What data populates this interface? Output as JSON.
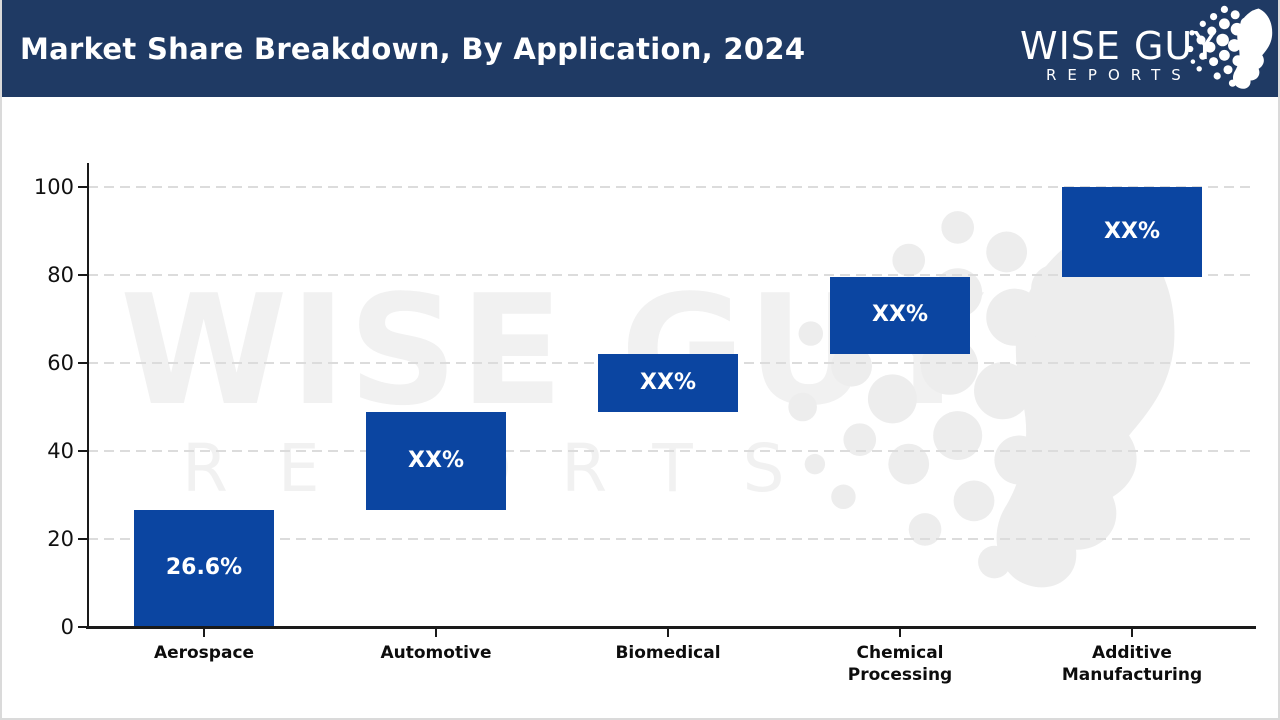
{
  "header": {
    "title": "Market Share Breakdown, By Application, 2024",
    "bg_color": "#1f3a64",
    "logo": {
      "name": "WISE GUY",
      "sub": "REPORTS"
    }
  },
  "watermark": {
    "line1": "WISE GUY",
    "line2": "REPORTS"
  },
  "chart_data": {
    "type": "bar",
    "variant": "waterfall",
    "title": "Market Share Breakdown, By Application, 2024",
    "categories": [
      "Aerospace",
      "Automotive",
      "Biomedical",
      "Chemical Processing",
      "Additive Manufacturing"
    ],
    "category_label_lines": [
      [
        "Aerospace"
      ],
      [
        "Automotive"
      ],
      [
        "Biomedical"
      ],
      [
        "Chemical",
        "Processing"
      ],
      [
        "Additive",
        "Manufacturing"
      ]
    ],
    "segments": [
      {
        "category": "Aerospace",
        "start": 0,
        "end": 26.6,
        "label": "26.6%"
      },
      {
        "category": "Automotive",
        "start": 26.6,
        "end": 48.8,
        "label": "XX%"
      },
      {
        "category": "Biomedical",
        "start": 48.8,
        "end": 62,
        "label": "XX%"
      },
      {
        "category": "Chemical Processing",
        "start": 62,
        "end": 79.5,
        "label": "XX%"
      },
      {
        "category": "Additive Manufacturing",
        "start": 79.5,
        "end": 100,
        "label": "XX%"
      }
    ],
    "xlabel": "",
    "ylabel": "",
    "ylim": [
      0,
      100
    ],
    "yticks": [
      0,
      20,
      40,
      60,
      80,
      100
    ],
    "grid": {
      "horizontal": true,
      "style": "dashed",
      "color": "#dcdcdc"
    },
    "legend": "none",
    "bar_color": "#0b45a1",
    "bar_label_color": "#ffffff",
    "axis_color": "#1a1a1a"
  }
}
